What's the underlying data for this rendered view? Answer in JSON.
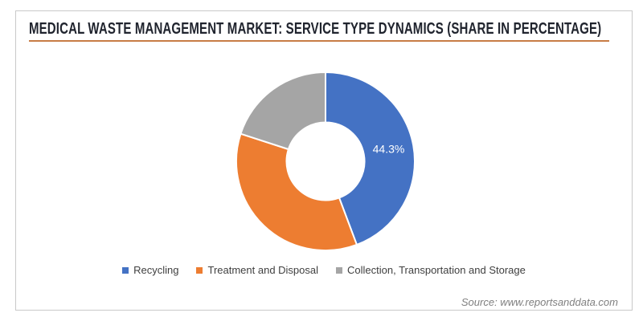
{
  "title": "MEDICAL WASTE MANAGEMENT MARKET: SERVICE TYPE DYNAMICS (SHARE IN PERCENTAGE)",
  "title_underline_color": "#c87c45",
  "source_text": "Source: www.reportsanddata.com",
  "chart_data": {
    "type": "pie",
    "subtype": "donut",
    "title": "MEDICAL WASTE MANAGEMENT MARKET: SERVICE TYPE DYNAMICS (SHARE IN PERCENTAGE)",
    "categories": [
      "Recycling",
      "Treatment and Disposal",
      "Collection, Transportation and Storage"
    ],
    "values": [
      44.3,
      35.7,
      20.0
    ],
    "colors": [
      "#4472c4",
      "#ed7d31",
      "#a5a5a5"
    ],
    "data_labels": [
      "44.3%",
      "",
      ""
    ],
    "data_label_color": "#ffffff",
    "start_angle_deg": 0,
    "clockwise": true,
    "donut_hole_ratio": 0.44,
    "outer_radius_px": 111,
    "inner_radius_px": 48.5,
    "separator_color": "#ffffff",
    "legend_position": "bottom"
  },
  "legend": {
    "items": [
      {
        "label": "Recycling",
        "color": "#4472c4"
      },
      {
        "label": "Treatment and Disposal",
        "color": "#ed7d31"
      },
      {
        "label": "Collection, Transportation and Storage",
        "color": "#a5a5a5"
      }
    ]
  }
}
